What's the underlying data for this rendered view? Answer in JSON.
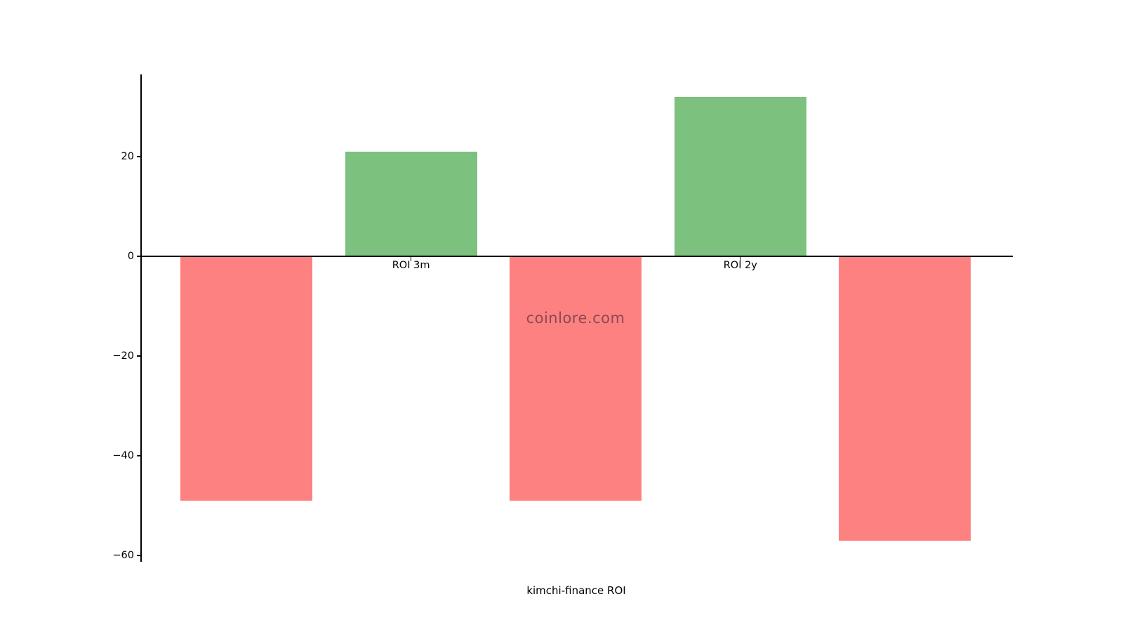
{
  "chart_data": {
    "type": "bar",
    "title": "kimchi-finance ROI",
    "watermark": "coinlore.com",
    "categories": [
      "",
      "ROI 3m",
      "",
      "ROI 2y",
      ""
    ],
    "values": [
      -49,
      21,
      -49,
      32,
      -57
    ],
    "y_ticks": [
      20,
      0,
      -20,
      -40,
      -60
    ],
    "y_tick_labels": [
      "20",
      "0",
      "−20",
      "−40",
      "−60"
    ],
    "ylim": [
      -61.5,
      36.5
    ],
    "xlabel": "kimchi-finance ROI",
    "ylabel": "",
    "grid": false,
    "legend": "none",
    "colors": {
      "positive": "#7cc17e",
      "negative": "#fd8181",
      "axis": "#000000",
      "tick_text": "#000000",
      "watermark_text": "#8b4a52",
      "background": "#ffffff"
    }
  }
}
